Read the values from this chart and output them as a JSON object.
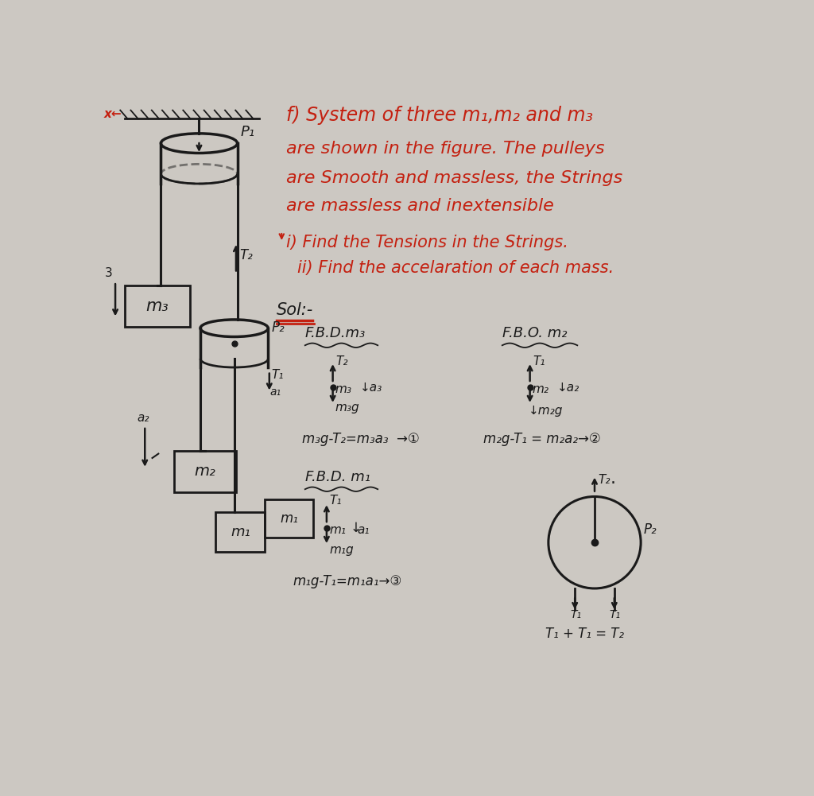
{
  "bg_color": "#ccc8c2",
  "red_color": "#c42010",
  "dark_color": "#1a1a1a",
  "title_line1": "f) System of three m₁,m₂ and m₃",
  "title_line2": "are shown in the figure. The pulleys",
  "title_line3": "are Smooth and massless, the Strings",
  "title_line4": "are massless and inextensible",
  "q1": "i) Find the Tensions in the Strings.",
  "q2": "ii) Find the accelaration of each mass.",
  "sol": "Sol:-",
  "eq1": "m₃g-T₂=m₃a₃  →①",
  "eq2": "m₂g-T₁ = m₂a₂→②",
  "eq3": "m₁g-T₁=m₁a₁→③",
  "eq4": "T₁ + T₁ = T₂"
}
